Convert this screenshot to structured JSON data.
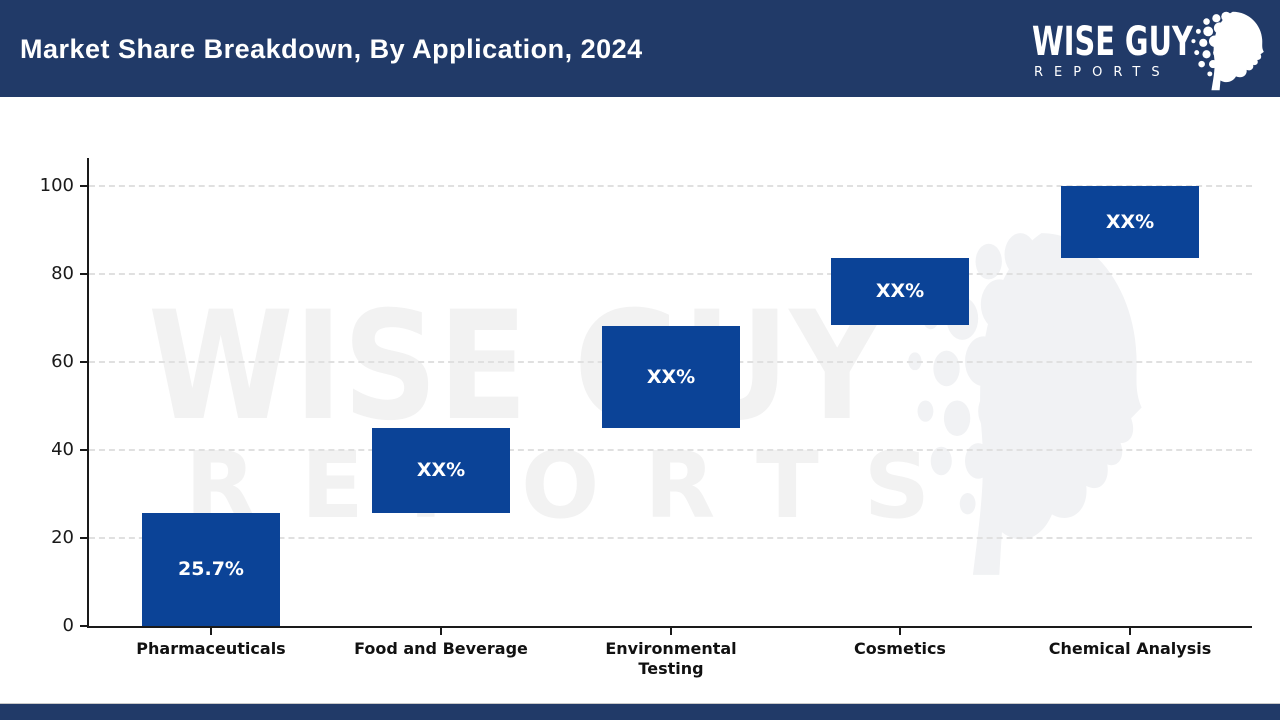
{
  "header": {
    "title": "Market Share Breakdown, By Application, 2024",
    "logo": {
      "line1": "WISE GUY",
      "line2": "REPORTS"
    }
  },
  "watermark": {
    "line1": "WISE GUY",
    "line2": "REPORTS"
  },
  "chart_data": {
    "type": "bar",
    "subtype": "waterfall",
    "title": "Market Share Breakdown, By Application, 2024",
    "categories": [
      "Pharmaceuticals",
      "Food and Beverage",
      "Environmental\nTesting",
      "Cosmetics",
      "Chemical Analysis"
    ],
    "series": [
      {
        "name": "Market Share",
        "segments": [
          {
            "category": "Pharmaceuticals",
            "start": 0,
            "end": 25.7,
            "label": "25.7%"
          },
          {
            "category": "Food and Beverage",
            "start": 25.7,
            "end": 45.0,
            "label": "XX%"
          },
          {
            "category": "Environmental Testing",
            "start": 45.0,
            "end": 68.2,
            "label": "XX%"
          },
          {
            "category": "Cosmetics",
            "start": 68.5,
            "end": 83.6,
            "label": "XX%"
          },
          {
            "category": "Chemical Analysis",
            "start": 83.6,
            "end": 100,
            "label": "XX%"
          }
        ]
      }
    ],
    "ylim": [
      0,
      100
    ],
    "yticks": [
      0,
      20,
      40,
      60,
      80,
      100
    ],
    "grid": "horizontal-dashed",
    "legend": "none",
    "colors": {
      "bar": "#0B4397",
      "bar_label": "#ffffff",
      "header_bg": "#213A68",
      "axis": "#1a1a1a",
      "gridline": "#e0e0e0",
      "watermark": "#f2f2f2"
    }
  }
}
